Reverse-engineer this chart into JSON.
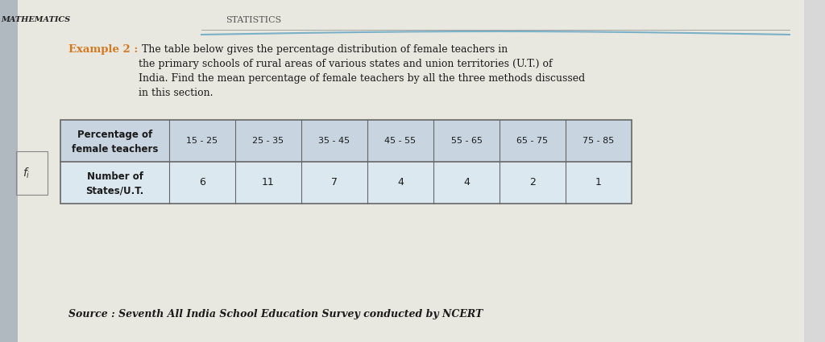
{
  "header_left": "MATHEMATICS",
  "header_right": "STATISTICS",
  "example_label": "Example 2 :",
  "example_text": " The table below gives the percentage distribution of female teachers in\nthe primary schools of rural areas of various states and union territories (U.T.) of\nIndia. Find the mean percentage of female teachers by all the three methods discussed\nin this section.",
  "col_header_row1": "Percentage of",
  "col_header_row2": "female teachers",
  "row_header_row1": "Number of",
  "row_header_row2": "States/U.T.",
  "column_ranges": [
    "15 - 25",
    "25 - 35",
    "35 - 45",
    "45 - 55",
    "55 - 65",
    "65 - 75",
    "75 - 85"
  ],
  "values": [
    "6",
    "11",
    "7",
    "4",
    "4",
    "2",
    "1"
  ],
  "source_text": "Source : Seventh All India School Education Survey conducted by NCERT",
  "bg_color": "#d8d8d8",
  "page_color": "#e8e8e0",
  "table_header_bg": "#c8d4e0",
  "table_data_bg": "#dce8f0",
  "curve_color": "#7ab0c8",
  "example_label_color": "#d47820",
  "text_color": "#1a1a1a",
  "header_color": "#555555"
}
